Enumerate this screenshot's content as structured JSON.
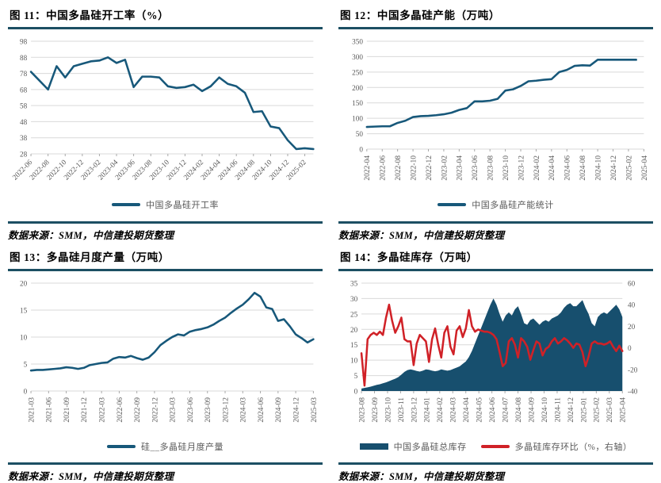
{
  "page": {
    "background": "#ffffff"
  },
  "colors": {
    "rule_teal": "#1c4f63",
    "line_blue": "#17587a",
    "area_blue": "#174f6e",
    "line_red": "#d02127",
    "grid": "#d9d9d9",
    "axis_tick_mark": "#a6a6a6",
    "axis_text": "#595959",
    "legend_text": "#595959",
    "title_text": "#000000"
  },
  "chart_data": [
    {
      "type": "line",
      "title": "图 11：中国多晶硅开工率（%）",
      "source": "数据来源：SMM，中信建投期货整理",
      "ylim": [
        28,
        98
      ],
      "yticks": [
        28,
        38,
        48,
        58,
        68,
        78,
        88,
        98
      ],
      "grid": true,
      "legend_position": "bottom",
      "x_label_rotate": 45,
      "x_tick_step": 2,
      "x_domain_pad": 0,
      "x_start": "2022-06",
      "x_freq": "monthly",
      "x_tick_labels": [
        "2022-06",
        "2022-08",
        "2022-10",
        "2022-12",
        "2023-02",
        "2023-04",
        "2023-06",
        "2023-08",
        "2023-10",
        "2023-12",
        "2024-02",
        "2024-04",
        "2024-06",
        "2024-08",
        "2024-10",
        "2024-12",
        "2025-02"
      ],
      "series": [
        {
          "name": "中国多晶硅开工率",
          "type": "line",
          "axis": "left",
          "color": "#17587a",
          "values": [
            79,
            73.5,
            68,
            82.5,
            75.5,
            82.5,
            84,
            85.5,
            86,
            88,
            84.5,
            86.5,
            69.5,
            76,
            76,
            75.5,
            70,
            69,
            69.5,
            71,
            67,
            70,
            75.5,
            71.5,
            70,
            66,
            54,
            54.5,
            45,
            44,
            36.5,
            31,
            31.5,
            31
          ]
        }
      ]
    },
    {
      "type": "line",
      "title": "图 12：中国多晶硅产能（万吨）",
      "source": "数据来源：SMM，中信建投期货整理",
      "ylim": [
        0,
        350
      ],
      "yticks": [
        0,
        50,
        100,
        150,
        200,
        250,
        300,
        350
      ],
      "grid": true,
      "legend_position": "bottom",
      "x_label_rotate": 90,
      "x_tick_step": 2,
      "x_domain_pad": 1,
      "x_start": "2022-04",
      "x_freq": "monthly",
      "x_tick_labels": [
        "2022-04",
        "2022-06",
        "2022-08",
        "2022-10",
        "2022-12",
        "2023-02",
        "2023-04",
        "2023-06",
        "2023-08",
        "2023-10",
        "2023-12",
        "2024-02",
        "2024-04",
        "2024-06",
        "2024-08",
        "2024-10",
        "2024-12",
        "2025-02",
        "2025-04"
      ],
      "series": [
        {
          "name": "中国多晶硅产能统计",
          "type": "line",
          "axis": "left",
          "color": "#17587a",
          "values": [
            72,
            73,
            74,
            74,
            85,
            92,
            104,
            107,
            108,
            110,
            113,
            118,
            127,
            133,
            155,
            155,
            157,
            163,
            190,
            194,
            205,
            220,
            222,
            225,
            227,
            250,
            257,
            270,
            272,
            271,
            290,
            290,
            290,
            290,
            290,
            290
          ]
        }
      ]
    },
    {
      "type": "line",
      "title": "图 13：多晶硅月度产量（万吨）",
      "source": "数据来源：SMM，中信建投期货整理",
      "ylim": [
        0,
        20
      ],
      "yticks": [
        0,
        5,
        10,
        15,
        20
      ],
      "grid": true,
      "legend_position": "bottom",
      "x_label_rotate": 90,
      "x_tick_step": 3,
      "x_domain_pad": 0,
      "x_start": "2021-03",
      "x_freq": "monthly",
      "x_tick_labels": [
        "2021-03",
        "2021-06",
        "2021-09",
        "2021-12",
        "2022-03",
        "2022-06",
        "2022-09",
        "2022-12",
        "2023-03",
        "2023-06",
        "2023-09",
        "2023-12",
        "2024-03",
        "2024-06",
        "2024-09",
        "2024-12",
        "2025-03"
      ],
      "series": [
        {
          "name": "硅__多晶硅月度产量",
          "type": "line",
          "axis": "left",
          "color": "#17587a",
          "values": [
            3.8,
            3.9,
            3.9,
            4.0,
            4.1,
            4.2,
            4.4,
            4.3,
            4.1,
            4.3,
            4.8,
            5.0,
            5.2,
            5.3,
            6.0,
            6.3,
            6.2,
            6.5,
            6.1,
            5.8,
            6.2,
            7.2,
            8.5,
            9.3,
            10.0,
            10.5,
            10.3,
            11.0,
            11.3,
            11.5,
            11.8,
            12.3,
            13.0,
            13.6,
            14.5,
            15.3,
            16.0,
            17.0,
            18.2,
            17.5,
            15.5,
            15.2,
            13.0,
            13.3,
            12.0,
            10.5,
            9.8,
            9.0,
            9.6
          ]
        }
      ]
    },
    {
      "type": "area+line",
      "title": "图 14：多晶硅库存（万吨）",
      "source": "数据来源：SMM，中信建投期货整理",
      "ylim": [
        0,
        35
      ],
      "yticks": [
        0,
        5,
        10,
        15,
        20,
        25,
        30,
        35
      ],
      "y2lim": [
        -40,
        60
      ],
      "y2ticks": [
        -40,
        -20,
        0,
        20,
        40,
        60
      ],
      "grid": true,
      "legend_position": "bottom",
      "x_label_rotate": 90,
      "x_domain_pad": 0,
      "x_start": "2023-08",
      "x_freq": "weekly",
      "x_tick_labels": [
        "2023-08",
        "2023-09",
        "2023-10",
        "2023-11",
        "2023-12",
        "2024-01",
        "2024-02",
        "2024-03",
        "2024-04",
        "2024-05",
        "2024-06",
        "2024-07",
        "2024-08",
        "2024-09",
        "2024-10",
        "2024-11",
        "2024-12",
        "2025-01",
        "2025-02",
        "2025-03",
        "2025-04"
      ],
      "series": [
        {
          "name": "中国多晶硅总库存",
          "type": "area",
          "axis": "left",
          "color": "#174f6e",
          "values": [
            0.8,
            1.0,
            1.2,
            1.4,
            1.7,
            2.0,
            2.2,
            2.5,
            2.8,
            3.2,
            3.6,
            4.0,
            4.5,
            5.3,
            6.2,
            6.8,
            7.0,
            6.8,
            6.5,
            6.3,
            6.6,
            7.0,
            6.9,
            6.6,
            6.4,
            6.6,
            7.0,
            6.8,
            6.6,
            6.8,
            7.2,
            7.6,
            8.0,
            8.8,
            9.6,
            11.0,
            13.0,
            15.5,
            18.0,
            20.5,
            23.0,
            25.5,
            28.0,
            30.0,
            28.0,
            25.0,
            22.5,
            24.5,
            25.5,
            24.5,
            26.5,
            27.5,
            25.0,
            22.0,
            21.5,
            23.0,
            23.5,
            22.5,
            21.5,
            22.5,
            23.0,
            22.5,
            23.5,
            24.0,
            24.5,
            25.5,
            27.0,
            28.0,
            28.5,
            27.5,
            27.5,
            28.5,
            29.5,
            27.0,
            25.0,
            22.0,
            21.0,
            24.0,
            25.0,
            25.5,
            25.0,
            26.0,
            27.0,
            28.0,
            26.5,
            24.0
          ]
        },
        {
          "name": "多晶硅库存环比（%，右轴）",
          "type": "line",
          "axis": "right",
          "color": "#d02127",
          "values": [
            -5,
            -35,
            8,
            12,
            14,
            12,
            15,
            12,
            28,
            40,
            25,
            14,
            20,
            28,
            8,
            6,
            6,
            -16,
            4,
            12,
            9,
            6,
            -13,
            8,
            18,
            3,
            -9,
            14,
            20,
            1,
            -6,
            16,
            20,
            10,
            18,
            35,
            20,
            15,
            17,
            16,
            15,
            15,
            14,
            12,
            8,
            -4,
            -17,
            -14,
            6,
            9,
            3,
            -9,
            9,
            6,
            1,
            -11,
            -2,
            6,
            4,
            -7,
            -1,
            1,
            6,
            9,
            4,
            6,
            9,
            7,
            4,
            0,
            4,
            3,
            -4,
            -17,
            -8,
            4,
            6,
            4,
            4,
            3,
            4,
            6,
            1,
            -3,
            2,
            -3
          ]
        }
      ]
    }
  ]
}
